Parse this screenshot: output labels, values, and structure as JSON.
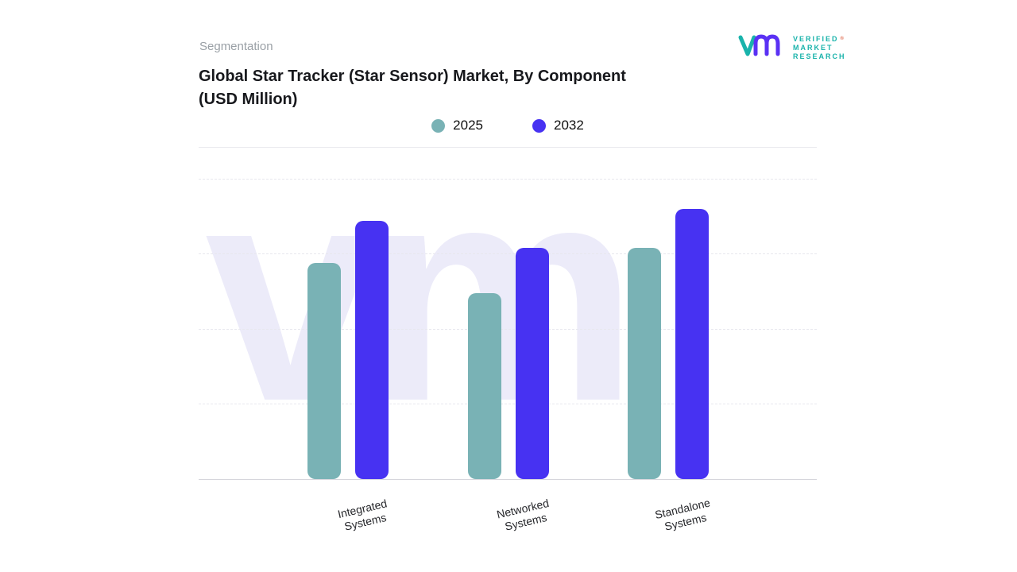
{
  "header": {
    "eyebrow": "Segmentation",
    "title_line1": "Global Star Tracker (Star Sensor) Market, By Component",
    "title_line2": "(USD Million)"
  },
  "logo": {
    "lines": [
      "VERIFIED",
      "MARKET",
      "RESEARCH"
    ],
    "registered_mark": "®",
    "brand_teal": "#19b3ab",
    "brand_purple": "#5a31f4"
  },
  "legend": [
    {
      "label": "2025",
      "color": "#79b2b5"
    },
    {
      "label": "2032",
      "color": "#4732f2"
    }
  ],
  "chart_data": {
    "type": "bar",
    "title": "Global Star Tracker (Star Sensor) Market, By Component (USD Million)",
    "categories": [
      "Integrated Systems",
      "Networked Systems",
      "Standalone Systems"
    ],
    "series": [
      {
        "name": "2025",
        "color": "#79b2b5",
        "values": [
          72,
          62,
          77
        ]
      },
      {
        "name": "2032",
        "color": "#4732f2",
        "values": [
          86,
          77,
          90
        ]
      }
    ],
    "xlabel": "",
    "ylabel": "",
    "ylim": [
      0,
      100
    ],
    "grid": "dashed-horizontal",
    "legend_position": "top-center",
    "watermark": "vm"
  }
}
